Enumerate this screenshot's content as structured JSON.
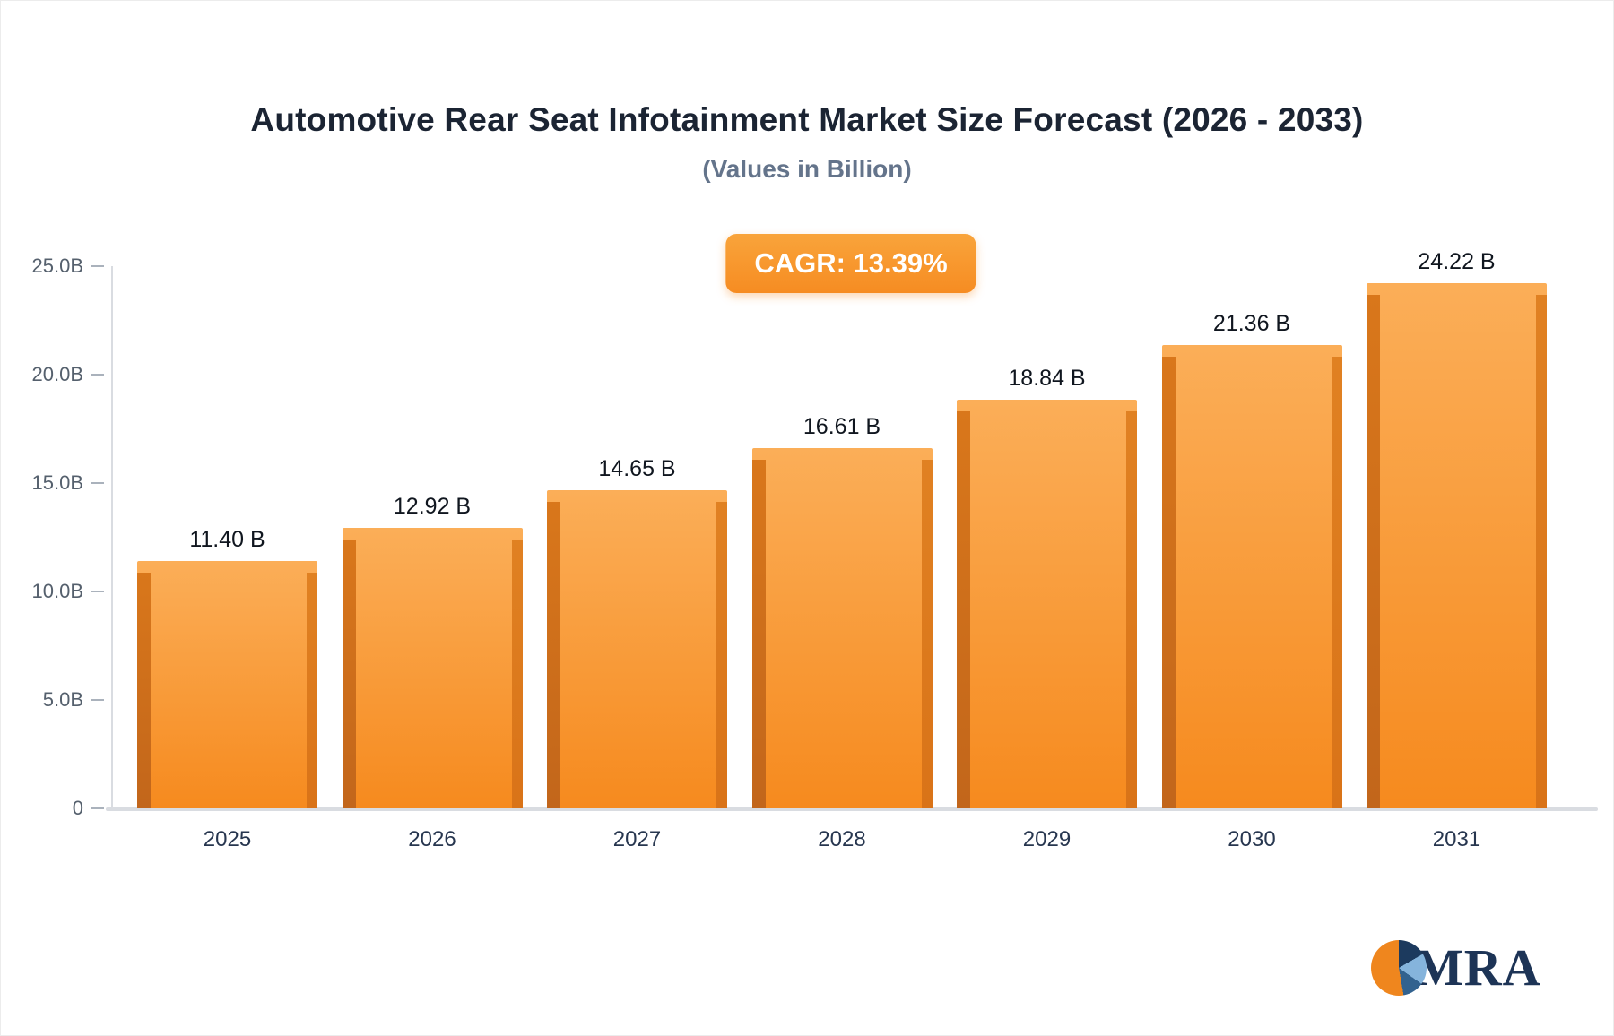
{
  "title": "Automotive Rear Seat Infotainment Market Size Forecast (2026 - 2033)",
  "subtitle": "(Values in Billion)",
  "badge": {
    "label": "CAGR: 13.39%"
  },
  "logo": {
    "text": "MRA"
  },
  "chart_data": {
    "type": "bar",
    "title": "Automotive Rear Seat Infotainment Market Size Forecast (2026 - 2033)",
    "subtitle": "(Values in Billion)",
    "annotation": "CAGR: 13.39%",
    "categories": [
      "2025",
      "2026",
      "2027",
      "2028",
      "2029",
      "2030",
      "2031"
    ],
    "values": [
      11.4,
      12.92,
      14.65,
      16.61,
      18.84,
      21.36,
      24.22
    ],
    "value_labels": [
      "11.40 B",
      "12.92 B",
      "14.65 B",
      "16.61 B",
      "18.84 B",
      "21.36 B",
      "24.22 B"
    ],
    "xlabel": "",
    "ylabel": "",
    "ylim": [
      0,
      25
    ],
    "ytick_values": [
      25,
      20,
      15,
      10,
      5,
      0
    ],
    "ytick_labels": [
      "25.0B",
      "20.0B",
      "15.0B",
      "10.0B",
      "5.0B",
      "0"
    ],
    "grid": false,
    "legend": false,
    "bar_color_top": "#FBAE58",
    "bar_color_bottom": "#F68A1E",
    "bar_side_color": "#C2661B",
    "badge_color": "#F68C22"
  }
}
